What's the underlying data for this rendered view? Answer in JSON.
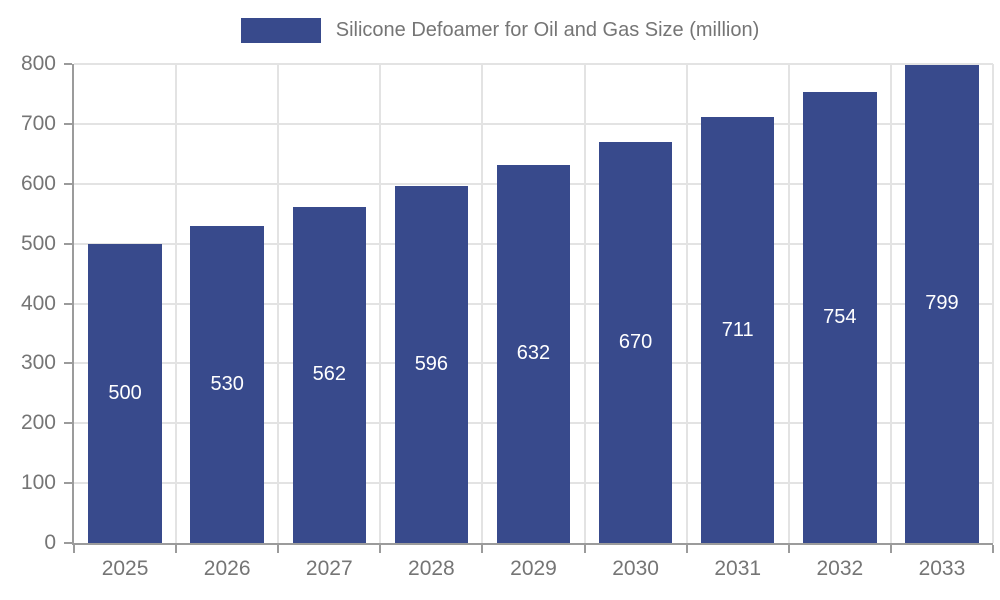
{
  "chart_data": {
    "type": "bar",
    "title": "Silicone Defoamer for Oil and Gas Size (million)",
    "categories": [
      "2025",
      "2026",
      "2027",
      "2028",
      "2029",
      "2030",
      "2031",
      "2032",
      "2033"
    ],
    "values": [
      500,
      530,
      562,
      596,
      632,
      670,
      711,
      754,
      799
    ],
    "xlabel": "",
    "ylabel": "",
    "ylim": [
      0,
      800
    ],
    "ytick_step": 100,
    "grid": "on",
    "legend_position": "top-center",
    "colors": {
      "bar": "#384a8c",
      "bar_label": "#ffffff",
      "axis": "#9b9b9b",
      "grid": "#e3e3e3",
      "tick_text": "#757575",
      "legend_text": "#757575"
    }
  }
}
